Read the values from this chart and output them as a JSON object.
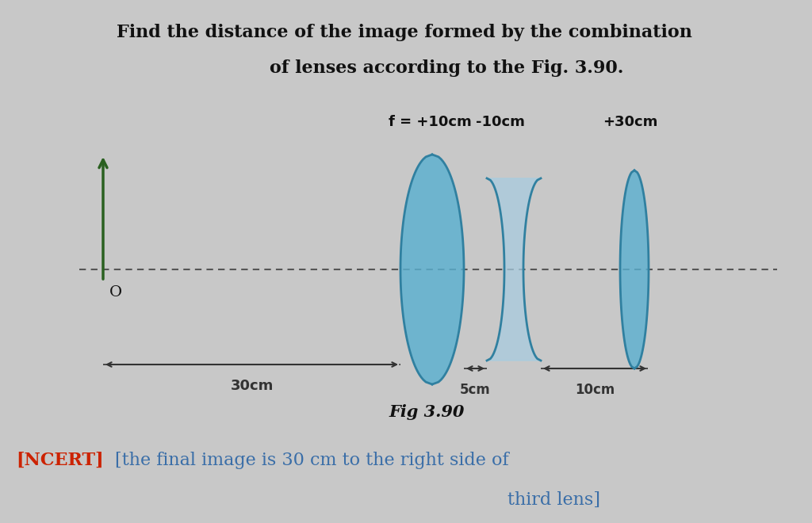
{
  "background_color": "#c8c8c8",
  "title_line1": "Find the distance of the image formed by the combination",
  "title_line2": "of lenses according to the Fig. 3.90.",
  "title_fontsize": 16,
  "title_color": "#111111",
  "fig_label": "Fig 3.90",
  "ncert_label": "[NCERT]",
  "ncert_color": "#cc2200",
  "answer_line1": "[the final image is 30 cm to the right side of",
  "answer_line2": "third lens]",
  "answer_color": "#3a6ea8",
  "lens1_label": "f = +10cm",
  "lens2_label": "-10cm",
  "lens3_label": "+30cm",
  "lens1_color_fill": "#5ab0d0",
  "lens1_color_edge": "#3080a0",
  "lens2_color_fill": "#a8cce0",
  "lens2_color_edge": "#3080a0",
  "lens3_color_fill": "#5ab0d0",
  "lens3_color_edge": "#3080a0",
  "dist1_label": "30cm",
  "dist2_label": "5cm",
  "dist3_label": "10cm",
  "dashed_color": "#555555",
  "arrow_color": "#333333",
  "object_arrow_color": "#2a6020"
}
